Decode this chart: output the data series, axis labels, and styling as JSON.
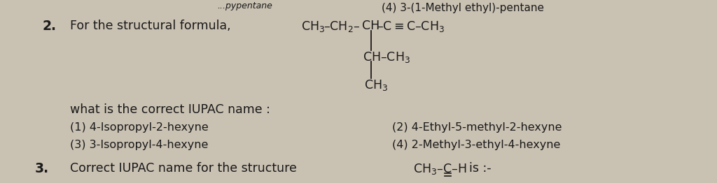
{
  "bg_color": "#c9c1b2",
  "text_color": "#1a1a1a",
  "title_top_right": "(4) 3-(1-Methyl ethyl)-pentane",
  "q2_label": "2.",
  "q2_intro": "For the structural formula,",
  "formula_main_1": "CH",
  "formula_main_2": "–CH",
  "formula_main_3": "–",
  "formula_main_4": "CH",
  "formula_main_5": "–C≡C–CH",
  "formula_branch1": "CH–CH",
  "formula_branch2": "CH",
  "question_text": "what is the correct IUPAC name :",
  "opt1": "(1) 4-Isopropyl-2-hexyne",
  "opt2": "(2) 4-Ethyl-5-methyl-2-hexyne",
  "opt3": "(3) 3-Isopropyl-4-hexyne",
  "opt4": "(4) 2-Methyl-3-ethyl-4-hexyne",
  "q3_label": "3.",
  "q3_text": "Correct IUPAC name for the structure",
  "q3_suffix": "is :-",
  "font_size": 12.5,
  "font_size_title": 11,
  "font_size_opt": 11.5
}
